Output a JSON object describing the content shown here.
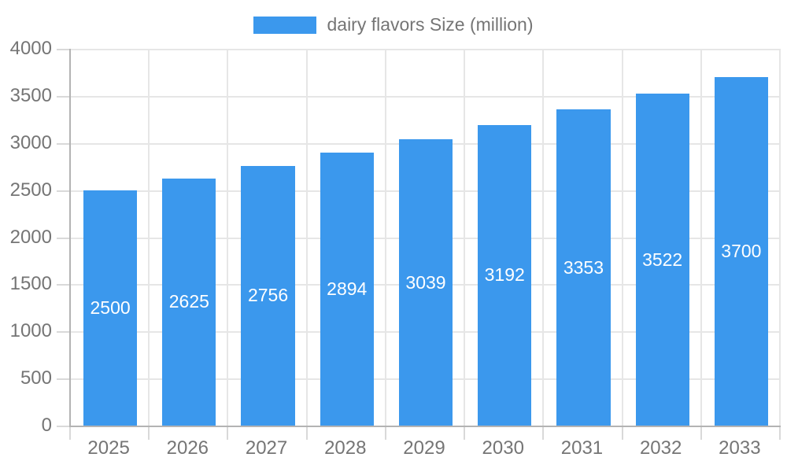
{
  "chart_data": {
    "type": "bar",
    "title": "dairy flavors Size (million)",
    "legend": {
      "label": "dairy flavors Size (million)",
      "position": "top",
      "swatch_color": "#3b98ed"
    },
    "categories": [
      "2025",
      "2026",
      "2027",
      "2028",
      "2029",
      "2030",
      "2031",
      "2032",
      "2033"
    ],
    "series": [
      {
        "name": "dairy flavors Size (million)",
        "values": [
          2500,
          2625,
          2756,
          2894,
          3039,
          3192,
          3353,
          3522,
          3700
        ]
      }
    ],
    "value_labels_shown": true,
    "value_label_position": "center-inside",
    "xlabel": "",
    "ylabel": "",
    "ylim": [
      0,
      4000
    ],
    "ytick_step": 500,
    "yticks": [
      0,
      500,
      1000,
      1500,
      2000,
      2500,
      3000,
      3500,
      4000
    ],
    "grid": true,
    "colors": {
      "bar": "#3b98ed",
      "value_label": "#ffffff",
      "axis_text": "#757575",
      "gridline": "#e6e6e6",
      "axis_line": "#b3b3b3",
      "tick": "#d9d9d9",
      "background": "#ffffff"
    }
  }
}
